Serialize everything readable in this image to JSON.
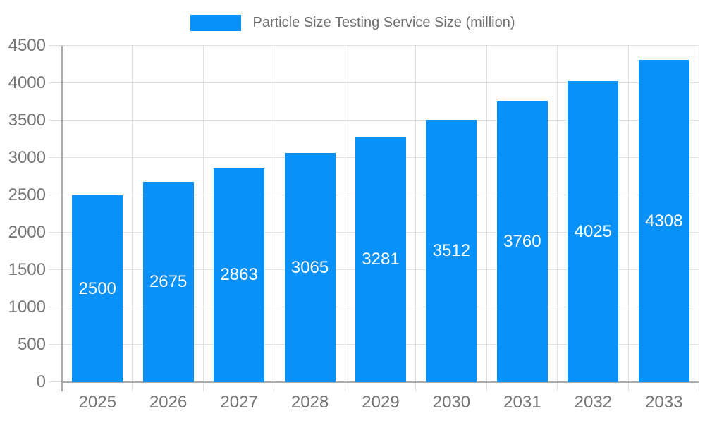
{
  "chart_data": {
    "type": "bar",
    "title": "Particle Size Testing Service Size (million)",
    "legend_position": "top",
    "grid": true,
    "categories": [
      "2025",
      "2026",
      "2027",
      "2028",
      "2029",
      "2030",
      "2031",
      "2032",
      "2033"
    ],
    "series": [
      {
        "name": "Particle Size Testing Service Size (million)",
        "values": [
          2500,
          2675,
          2863,
          3065,
          3281,
          3512,
          3760,
          4025,
          4308
        ]
      }
    ],
    "xlabel": "",
    "ylabel": "",
    "ylim": [
      0,
      4500
    ],
    "ytick_step": 500,
    "ytick_labels": [
      "0",
      "500",
      "1000",
      "1500",
      "2000",
      "2500",
      "3000",
      "3500",
      "4000",
      "4500"
    ]
  },
  "colors": {
    "bar": "#0991fa",
    "grid": "#e0e0e0",
    "axis": "#ababab",
    "tick_label": "#757575",
    "legend_text": "#6e6e6e",
    "value_label": "#ffffff",
    "background": "#ffffff"
  }
}
